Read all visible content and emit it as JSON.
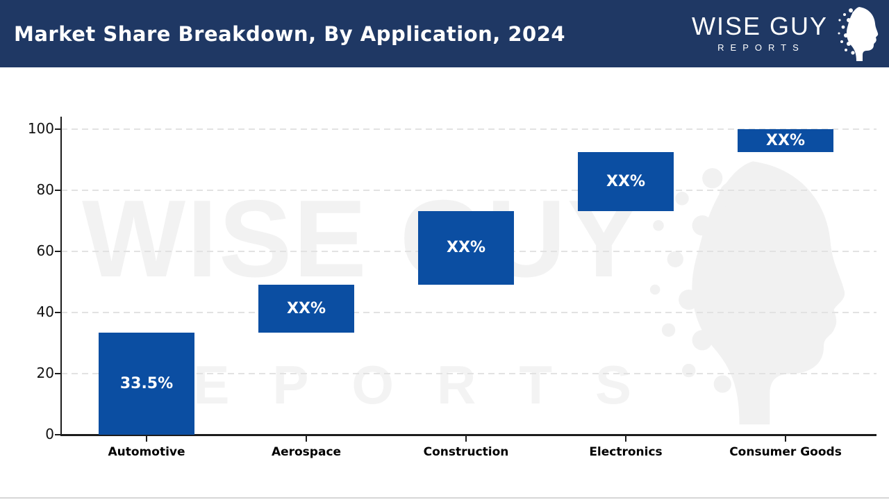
{
  "header": {
    "title": "Market Share Breakdown, By Application, 2024",
    "bg_color": "#1f3864",
    "logo": {
      "name": "WISE GUY",
      "sub": "REPORTS"
    }
  },
  "watermark": {
    "name": "WISE GUY",
    "sub": "REPORTS"
  },
  "chart_data": {
    "type": "bar",
    "subtype": "waterfall",
    "title": "Market Share Breakdown, By Application, 2024",
    "categories": [
      "Automotive",
      "Aerospace",
      "Construction",
      "Electronics",
      "Consumer Goods"
    ],
    "segments": [
      {
        "category": "Automotive",
        "start": 0,
        "end": 33.5,
        "label": "33.5%"
      },
      {
        "category": "Aerospace",
        "start": 33.5,
        "end": 49.2,
        "label": "XX%"
      },
      {
        "category": "Construction",
        "start": 49.2,
        "end": 73.2,
        "label": "XX%"
      },
      {
        "category": "Electronics",
        "start": 73.2,
        "end": 92.5,
        "label": "XX%"
      },
      {
        "category": "Consumer Goods",
        "start": 92.5,
        "end": 100,
        "label": "XX%"
      }
    ],
    "yticks": [
      0,
      20,
      40,
      60,
      80,
      100
    ],
    "ylim": [
      0,
      105
    ],
    "bar_color": "#0b4ea2",
    "bar_label_color": "#ffffff",
    "grid": "dashed-horizontal",
    "legend": "none"
  }
}
